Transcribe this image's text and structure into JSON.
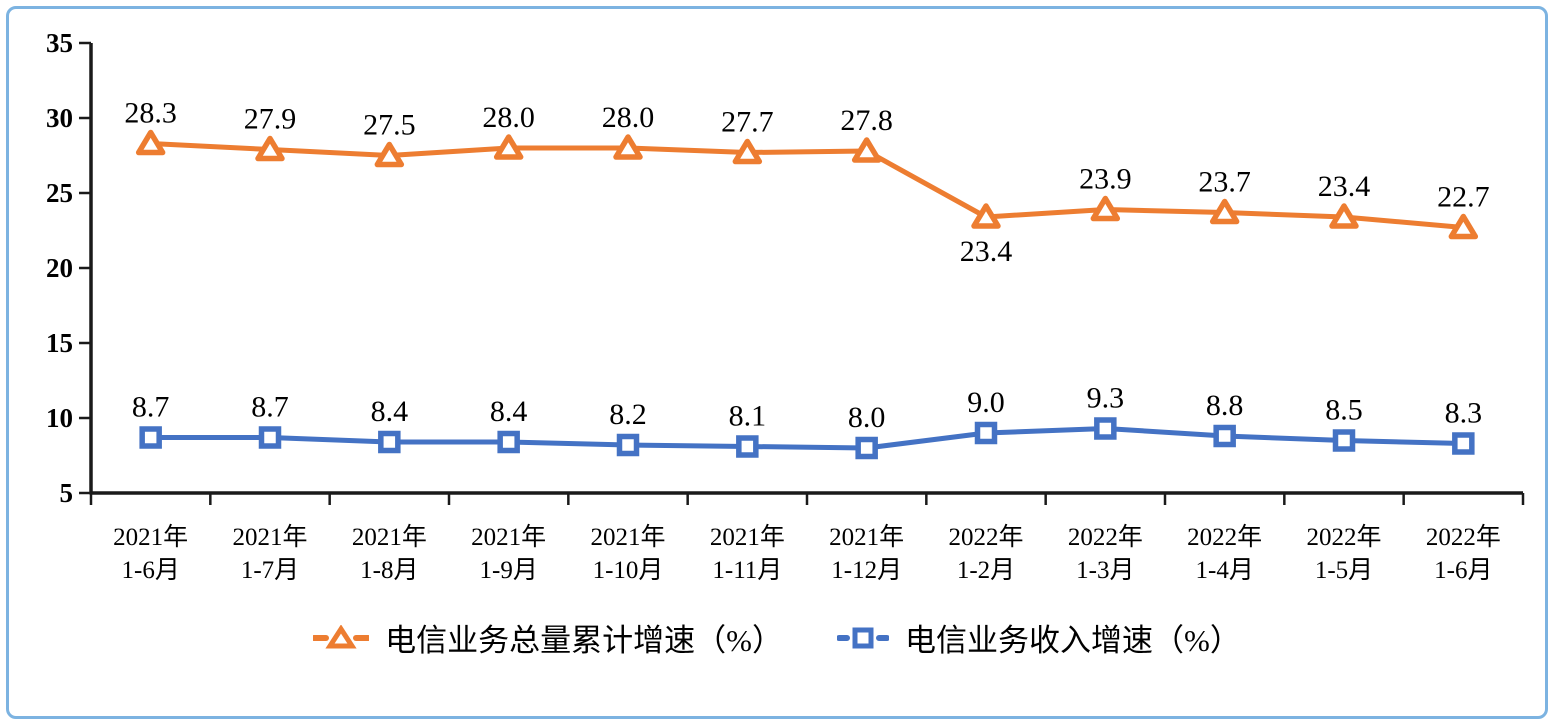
{
  "panel": {
    "border_color": "#7cb3e1",
    "background_color": "#ffffff"
  },
  "chart_data": {
    "type": "line",
    "title": "",
    "xlabel": "",
    "ylabel": "",
    "grid": false,
    "legend_position": "bottom",
    "ylim": [
      5,
      35
    ],
    "yticks": [
      5,
      10,
      15,
      20,
      25,
      30,
      35
    ],
    "axis_color": "#1a1a1a",
    "label_color": "#000000",
    "categories": [
      {
        "line1": "2021年",
        "line2": "1-6月"
      },
      {
        "line1": "2021年",
        "line2": "1-7月"
      },
      {
        "line1": "2021年",
        "line2": "1-8月"
      },
      {
        "line1": "2021年",
        "line2": "1-9月"
      },
      {
        "line1": "2021年",
        "line2": "1-10月"
      },
      {
        "line1": "2021年",
        "line2": "1-11月"
      },
      {
        "line1": "2021年",
        "line2": "1-12月"
      },
      {
        "line1": "2022年",
        "line2": "1-2月"
      },
      {
        "line1": "2022年",
        "line2": "1-3月"
      },
      {
        "line1": "2022年",
        "line2": "1-4月"
      },
      {
        "line1": "2022年",
        "line2": "1-5月"
      },
      {
        "line1": "2022年",
        "line2": "1-6月"
      }
    ],
    "series": [
      {
        "name": "电信业务总量累计增速（%）",
        "color": "#ED7D31",
        "marker": "triangle",
        "values": [
          28.3,
          27.9,
          27.5,
          28.0,
          28.0,
          27.7,
          27.8,
          23.4,
          23.9,
          23.7,
          23.4,
          22.7
        ],
        "labels_below_indices": [
          7
        ]
      },
      {
        "name": "电信业务收入增速（%）",
        "color": "#4472C4",
        "marker": "square",
        "values": [
          8.7,
          8.7,
          8.4,
          8.4,
          8.2,
          8.1,
          8.0,
          9.0,
          9.3,
          8.8,
          8.5,
          8.3
        ],
        "labels_below_indices": []
      }
    ]
  }
}
